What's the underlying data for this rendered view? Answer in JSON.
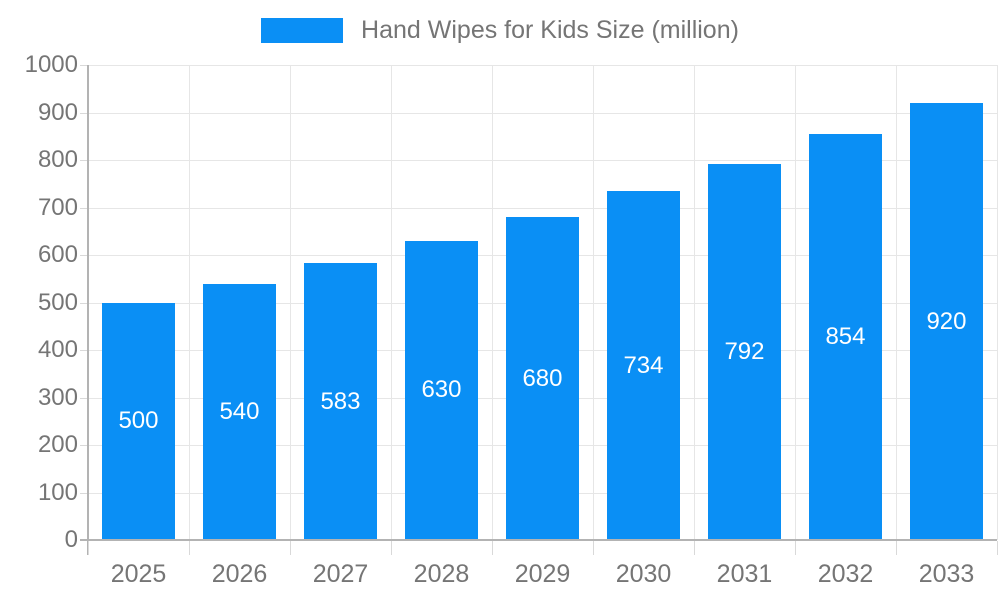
{
  "legend": {
    "label": "Hand Wipes for Kids Size (million)"
  },
  "colors": {
    "bar": "#0a8ff5",
    "grid": "#e6e6e6",
    "axis": "#b3b3b3",
    "tick": "#d9d9d9",
    "text": "#757575",
    "bar_label": "#ffffff",
    "background": "#ffffff"
  },
  "chart_data": {
    "type": "bar",
    "title": "Hand Wipes for Kids Size (million)",
    "series_name": "Hand Wipes for Kids Size (million)",
    "categories": [
      "2025",
      "2026",
      "2027",
      "2028",
      "2029",
      "2030",
      "2031",
      "2032",
      "2033"
    ],
    "values": [
      500,
      540,
      583,
      630,
      680,
      734,
      792,
      854,
      920
    ],
    "xlabel": "",
    "ylabel": "",
    "ylim": [
      0,
      1000
    ],
    "ytick_step": 100,
    "grid": true,
    "legend_position": "top-center",
    "bar_labels": "inside-center",
    "bar_label_color": "#ffffff"
  }
}
